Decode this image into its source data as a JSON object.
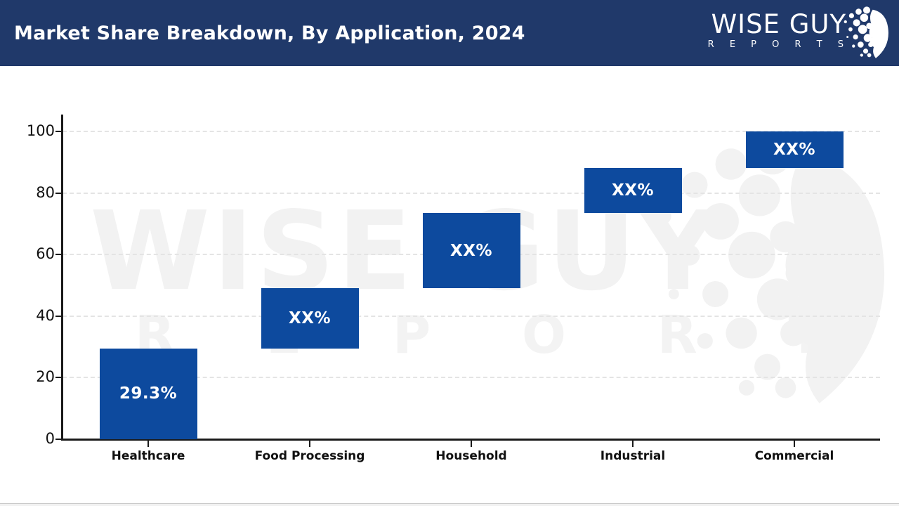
{
  "header": {
    "title": "Market Share Breakdown, By Application, 2024",
    "logo_line1": "WISE GUY",
    "logo_line2": "R E P O R T S",
    "bg_color": "#20396a"
  },
  "watermark": {
    "line1": "WISE GUY",
    "line2": "R E P O R T S"
  },
  "chart_data": {
    "type": "bar",
    "subtype": "waterfall",
    "title": "Market Share Breakdown, By Application, 2024",
    "categories": [
      "Healthcare",
      "Food Processing",
      "Household",
      "Industrial",
      "Commercial"
    ],
    "segments": [
      {
        "category": "Healthcare",
        "start": 0,
        "end": 29.3,
        "value": 29.3,
        "label": "29.3%"
      },
      {
        "category": "Food Processing",
        "start": 29.3,
        "end": 49.0,
        "value": 19.7,
        "label": "XX%"
      },
      {
        "category": "Household",
        "start": 49.0,
        "end": 73.4,
        "value": 24.4,
        "label": "XX%"
      },
      {
        "category": "Industrial",
        "start": 73.4,
        "end": 88.2,
        "value": 14.8,
        "label": "XX%"
      },
      {
        "category": "Commercial",
        "start": 88.2,
        "end": 100,
        "value": 11.8,
        "label": "XX%"
      }
    ],
    "yticks": [
      0,
      20,
      40,
      60,
      80,
      100
    ],
    "ylim": [
      0,
      105
    ],
    "xlabel": "",
    "ylabel": "",
    "bar_color": "#0d4a9e",
    "grid": "horizontal-dashed",
    "legend": "none"
  }
}
